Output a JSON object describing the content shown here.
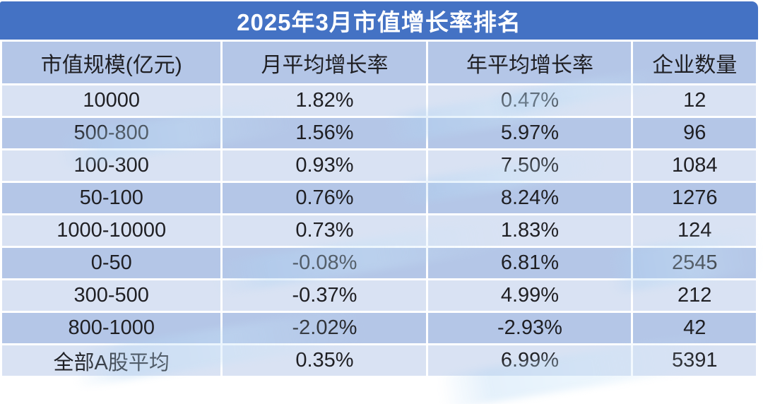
{
  "title_bar": {
    "title": "2025年3月市值增长率排名"
  },
  "colors": {
    "title_bg": "#4472C4",
    "title_text": "#FFFFFF",
    "header_bg": "#B4C6E7",
    "row_odd_bg": "#D9E2F3",
    "row_even_bg": "#B4C6E7",
    "grid_line": "#FFFFFF",
    "body_text": "#1F1F23"
  },
  "chart_data": {
    "type": "table",
    "title": "2025年3月市值增长率排名",
    "columns": [
      "市值规模(亿元)",
      "月平均增长率",
      "年平均增长率",
      "企业数量"
    ],
    "rows": [
      [
        "10000",
        "1.82%",
        "0.47%",
        "12"
      ],
      [
        "500-800",
        "1.56%",
        "5.97%",
        "96"
      ],
      [
        "100-300",
        "0.93%",
        "7.50%",
        "1084"
      ],
      [
        "50-100",
        "0.76%",
        "8.24%",
        "1276"
      ],
      [
        "1000-10000",
        "0.73%",
        "1.83%",
        "124"
      ],
      [
        "0-50",
        "-0.08%",
        "6.81%",
        "2545"
      ],
      [
        "300-500",
        "-0.37%",
        "4.99%",
        "212"
      ],
      [
        "800-1000",
        "-2.02%",
        "-2.93%",
        "42"
      ],
      [
        "全部A股平均",
        "0.35%",
        "6.99%",
        "5391"
      ]
    ],
    "layout": {
      "striped": true,
      "grid": true,
      "column_width_pct": [
        29.2,
        27.2,
        27.1,
        16.5
      ]
    }
  }
}
